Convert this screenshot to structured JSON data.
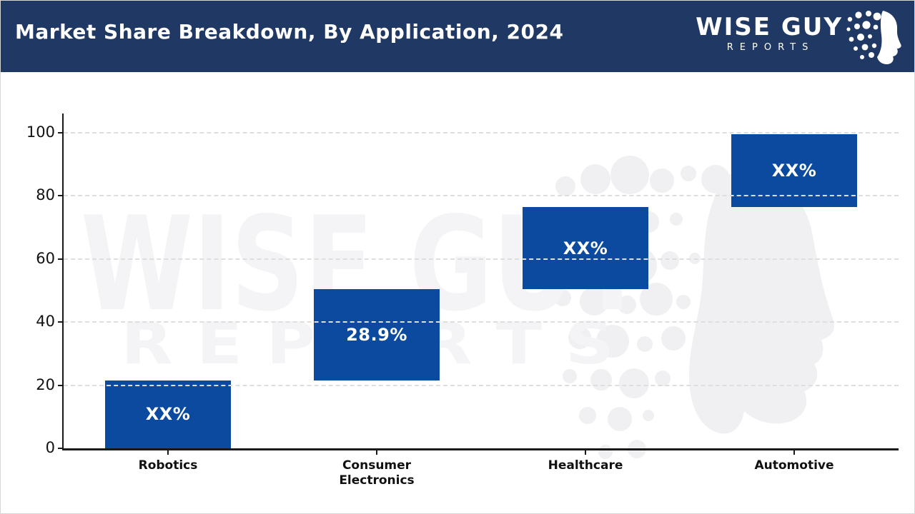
{
  "header": {
    "title": "Market Share Breakdown, By Application, 2024",
    "logo": {
      "brand_top": "WISE GUY",
      "brand_bottom": "REPORTS"
    }
  },
  "watermark": {
    "line1": "WISE GUY",
    "line2": "R E P O R T S"
  },
  "colors": {
    "header_bg": "#203864",
    "bar": "#0b4a9e",
    "bar_label": "#ffffff",
    "axis": "#1a1a1a",
    "grid": "#dedede",
    "page_bg": "#ffffff",
    "watermark": "#f3f3f6"
  },
  "chart_data": {
    "type": "bar",
    "variant": "waterfall",
    "title": "Market Share Breakdown, By Application, 2024",
    "categories": [
      "Robotics",
      "Consumer Electronics",
      "Healthcare",
      "Automotive"
    ],
    "category_label_lines": [
      [
        "Robotics"
      ],
      [
        "Consumer",
        "Electronics"
      ],
      [
        "Healthcare"
      ],
      [
        "Automotive"
      ]
    ],
    "segments": [
      {
        "category": "Robotics",
        "start": 0,
        "end": 21.6,
        "label": "XX%"
      },
      {
        "category": "Consumer Electronics",
        "start": 21.6,
        "end": 50.5,
        "label": "28.9%"
      },
      {
        "category": "Healthcare",
        "start": 50.5,
        "end": 76.4,
        "label": "XX%"
      },
      {
        "category": "Automotive",
        "start": 76.4,
        "end": 99.5,
        "label": "XX%"
      }
    ],
    "ylim": [
      0,
      100
    ],
    "yticks": [
      0,
      20,
      40,
      60,
      80,
      100
    ],
    "xlabel": "",
    "ylabel": "",
    "grid": {
      "horizontal": true,
      "style": "dashed",
      "drawn_over_bars": true
    },
    "legend": "none"
  }
}
